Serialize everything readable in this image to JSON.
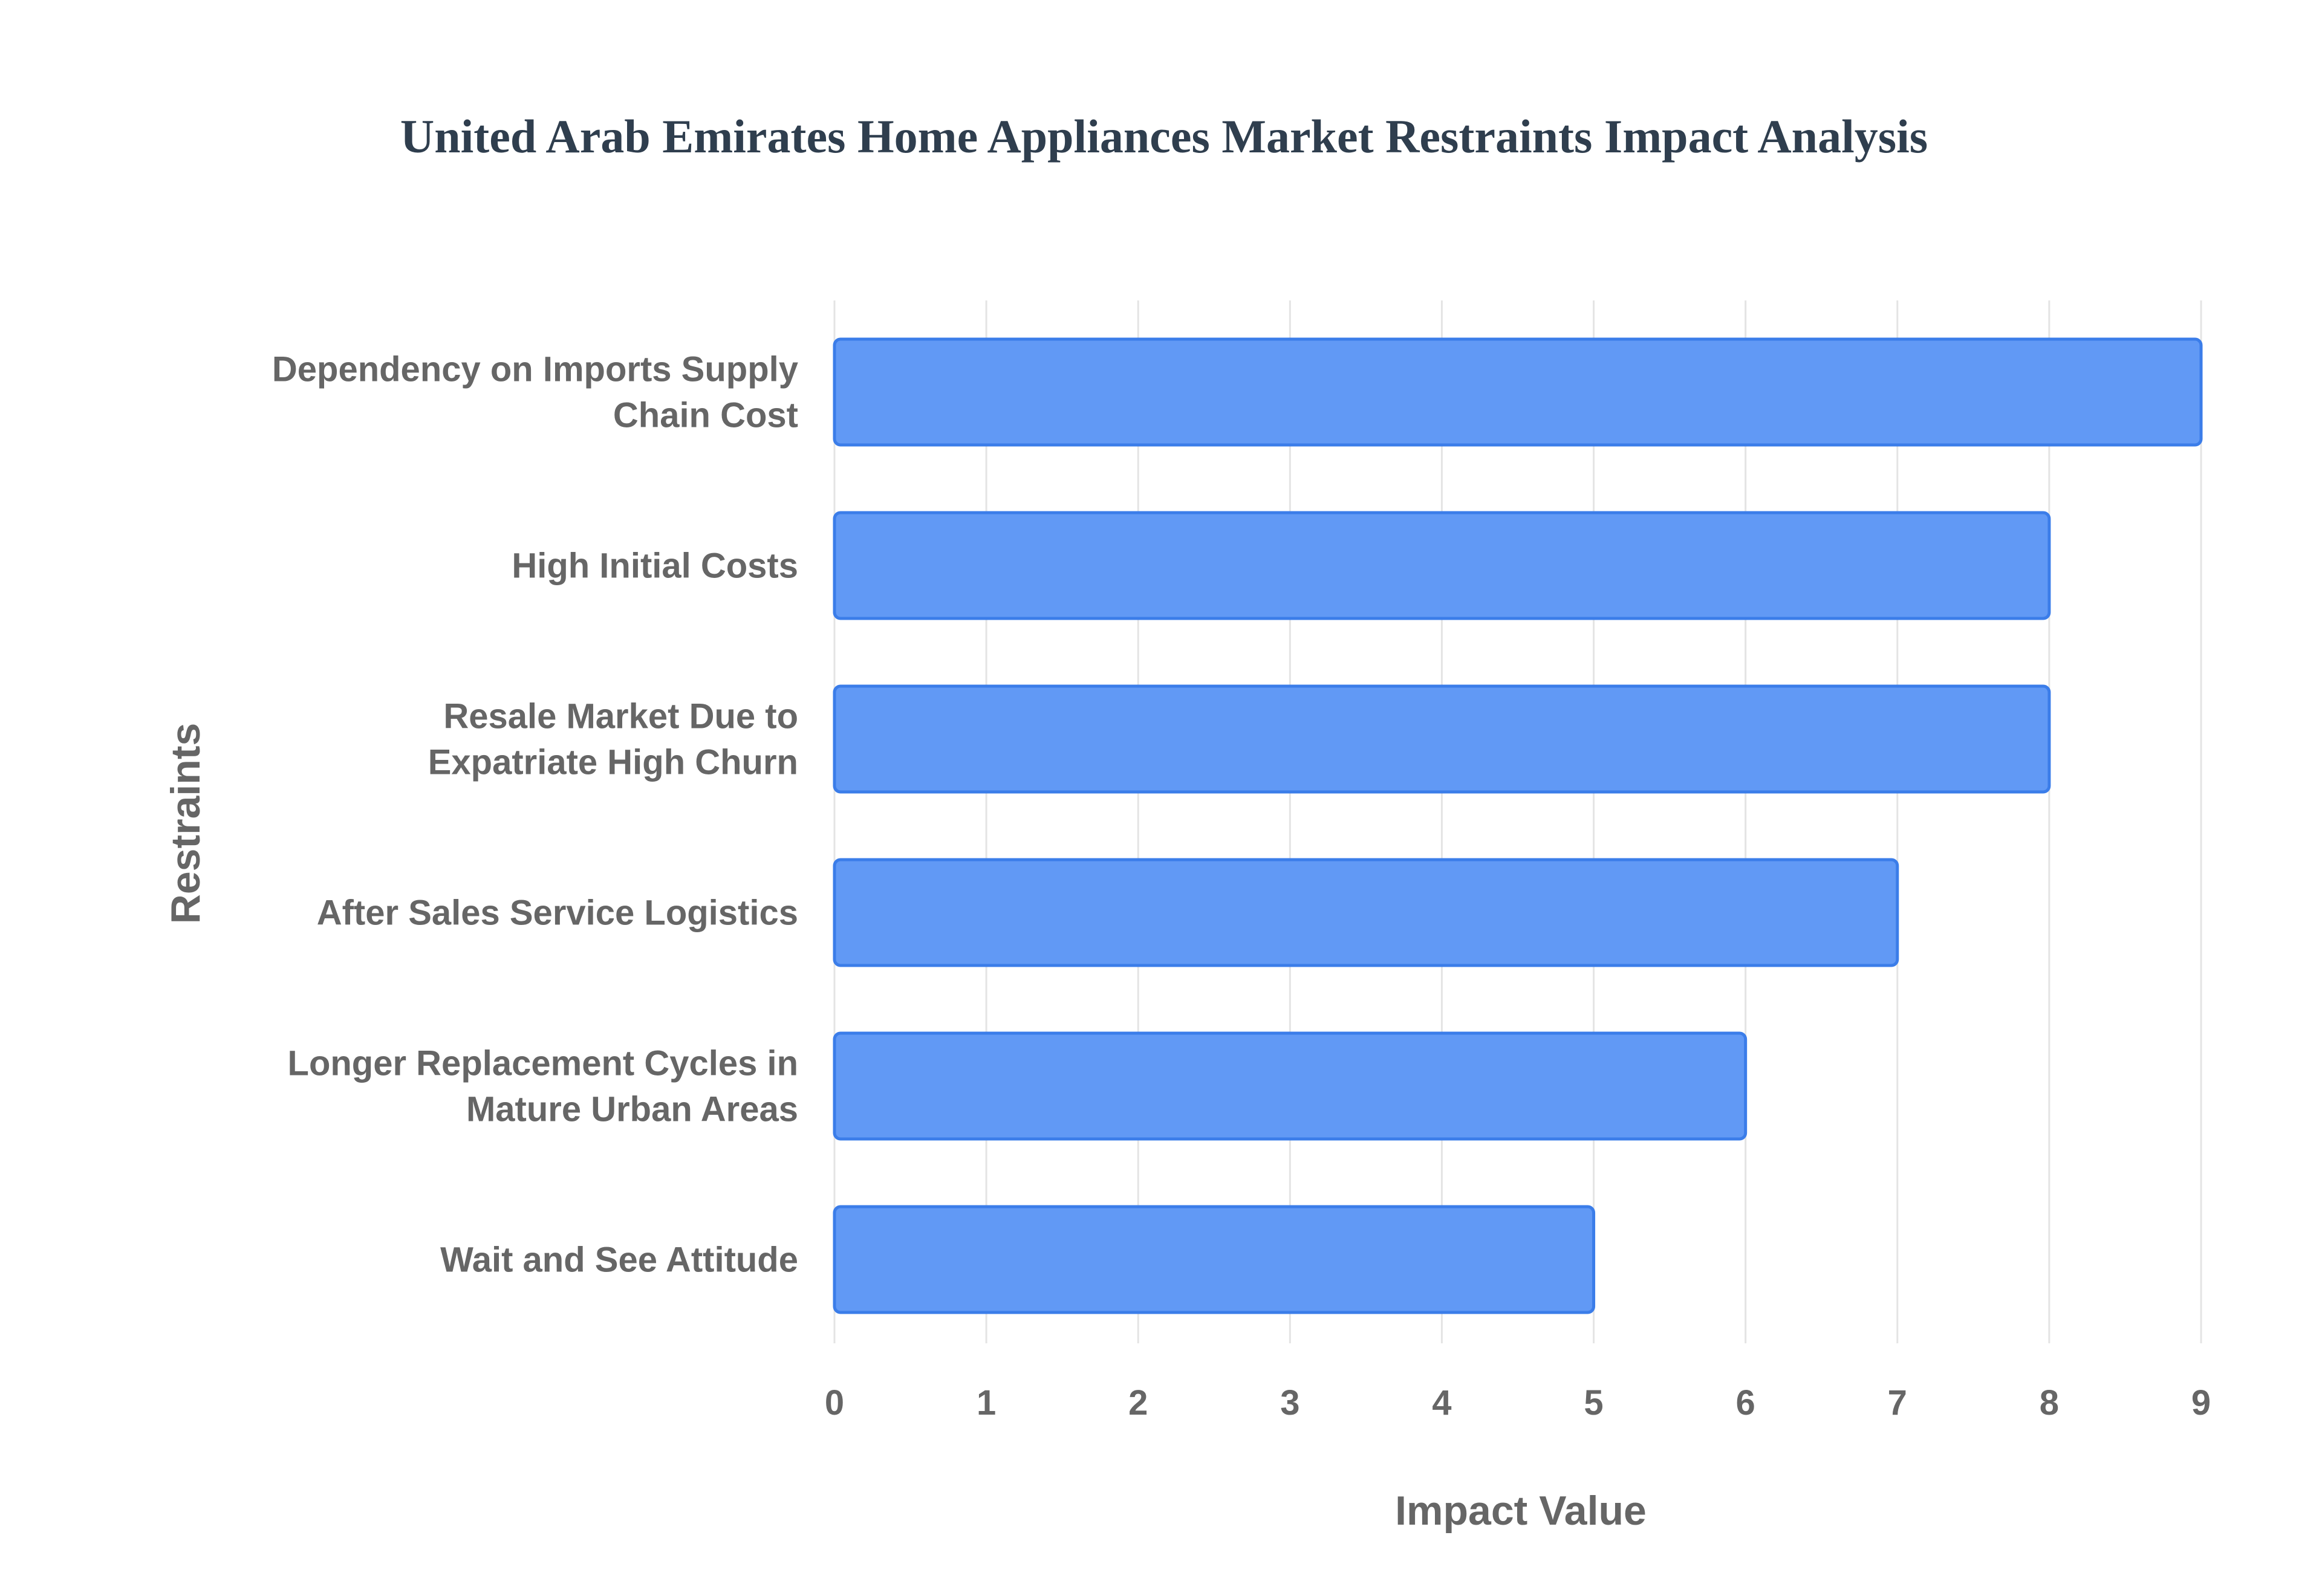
{
  "chart_data": {
    "type": "bar",
    "orientation": "horizontal",
    "title": "United Arab Emirates Home Appliances Market Restraints Impact Analysis",
    "xlabel": "Impact Value",
    "ylabel": "Restraints",
    "categories": [
      [
        "Dependency on Imports Supply",
        "Chain Cost"
      ],
      [
        "High Initial Costs"
      ],
      [
        "Resale Market Due to",
        "Expatriate High Churn"
      ],
      [
        "After Sales Service Logistics"
      ],
      [
        "Longer Replacement Cycles in",
        "Mature Urban Areas"
      ],
      [
        "Wait and See Attitude"
      ]
    ],
    "values": [
      9,
      8,
      8,
      7,
      6,
      5
    ],
    "xlim": [
      0,
      9
    ],
    "xticks": [
      "0",
      "1",
      "2",
      "3",
      "4",
      "5",
      "6",
      "7",
      "8",
      "9"
    ],
    "grid": true,
    "legend": "none",
    "colors": {
      "bar_fill": "#6199f5",
      "bar_stroke": "#3b7de9",
      "title": "#2f3e4e",
      "labels": "#666666",
      "grid": "#e4e4e4"
    }
  }
}
